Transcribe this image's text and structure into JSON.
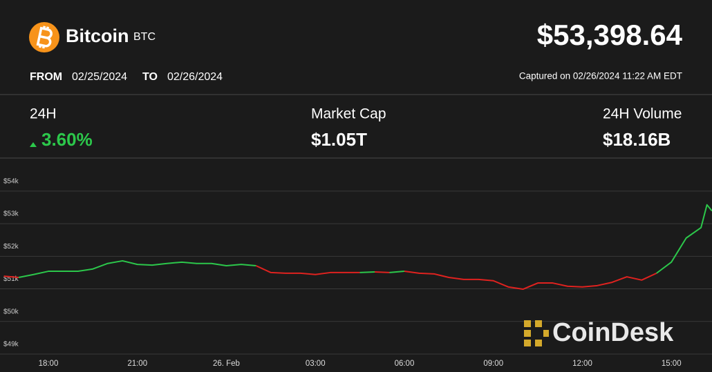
{
  "header": {
    "name": "Bitcoin",
    "symbol": "BTC",
    "price": "$53,398.64",
    "from_label": "FROM",
    "from_date": "02/25/2024",
    "to_label": "TO",
    "to_date": "02/26/2024",
    "captured": "Captured on 02/26/2024 11:22 AM EDT"
  },
  "stats": [
    {
      "label": "24H",
      "value": "3.60%"
    },
    {
      "label": "Market Cap",
      "value": "$1.05T"
    },
    {
      "label": "24H Volume",
      "value": "$18.16B"
    }
  ],
  "watermark": "CoinDesk",
  "chart_data": {
    "type": "line",
    "x": [
      16.5,
      17,
      17.5,
      18,
      18.5,
      19,
      19.5,
      20,
      20.5,
      21,
      21.5,
      22,
      22.5,
      23,
      23.5,
      24,
      24.5,
      25,
      25.5,
      26,
      26.5,
      27,
      27.5,
      28,
      28.5,
      29,
      29.5,
      30,
      30.5,
      31,
      31.5,
      32,
      32.5,
      33,
      33.5,
      34,
      34.5,
      35,
      35.5,
      36,
      36.5,
      37,
      37.5,
      38,
      38.5,
      39,
      39.5,
      40,
      40.2,
      40.37
    ],
    "series": [
      {
        "values": [
          51390,
          51350,
          51440,
          51540,
          51540,
          51540,
          51610,
          51780,
          51860,
          51750,
          51730,
          51780,
          51820,
          51780,
          51780,
          51710,
          51750,
          51710,
          51500,
          51480,
          51480,
          51440,
          51500,
          51500,
          51500,
          51520,
          51500,
          51540,
          51480,
          51460,
          51350,
          51290,
          51290,
          51250,
          51060,
          50990,
          51180,
          51180,
          51080,
          51060,
          51100,
          51200,
          51370,
          51270,
          51480,
          51820,
          52560,
          52880,
          53580,
          53390
        ],
        "point_colors": [
          "#e0221f",
          "#e0221f",
          "#2cc84b",
          "#2cc84b",
          "#2cc84b",
          "#2cc84b",
          "#2cc84b",
          "#2cc84b",
          "#2cc84b",
          "#2cc84b",
          "#2cc84b",
          "#2cc84b",
          "#2cc84b",
          "#2cc84b",
          "#2cc84b",
          "#2cc84b",
          "#2cc84b",
          "#2cc84b",
          "#e0221f",
          "#e0221f",
          "#e0221f",
          "#e0221f",
          "#e0221f",
          "#e0221f",
          "#e0221f",
          "#2cc84b",
          "#e0221f",
          "#2cc84b",
          "#e0221f",
          "#e0221f",
          "#e0221f",
          "#e0221f",
          "#e0221f",
          "#e0221f",
          "#e0221f",
          "#e0221f",
          "#e0221f",
          "#e0221f",
          "#e0221f",
          "#e0221f",
          "#e0221f",
          "#e0221f",
          "#e0221f",
          "#e0221f",
          "#e0221f",
          "#2cc84b",
          "#2cc84b",
          "#2cc84b",
          "#2cc84b",
          "#2cc84b"
        ]
      }
    ],
    "xlim": [
      16.37,
      40.37
    ],
    "xticks": [
      {
        "value": 18,
        "label": "18:00"
      },
      {
        "value": 21,
        "label": "21:00"
      },
      {
        "value": 24,
        "label": "26. Feb"
      },
      {
        "value": 27,
        "label": "03:00"
      },
      {
        "value": 30,
        "label": "06:00"
      },
      {
        "value": 33,
        "label": "09:00"
      },
      {
        "value": 36,
        "label": "12:00"
      },
      {
        "value": 39,
        "label": "15:00"
      }
    ],
    "ylim": [
      49000,
      54950
    ],
    "yticks": [
      {
        "value": 49000,
        "label": "$49k"
      },
      {
        "value": 50000,
        "label": "$50k"
      },
      {
        "value": 51000,
        "label": "$51k"
      },
      {
        "value": 52000,
        "label": "$52k"
      },
      {
        "value": 53000,
        "label": "$53k"
      },
      {
        "value": 54000,
        "label": "$54k"
      }
    ],
    "grid": true,
    "grid_color": "#3a3a3a"
  }
}
